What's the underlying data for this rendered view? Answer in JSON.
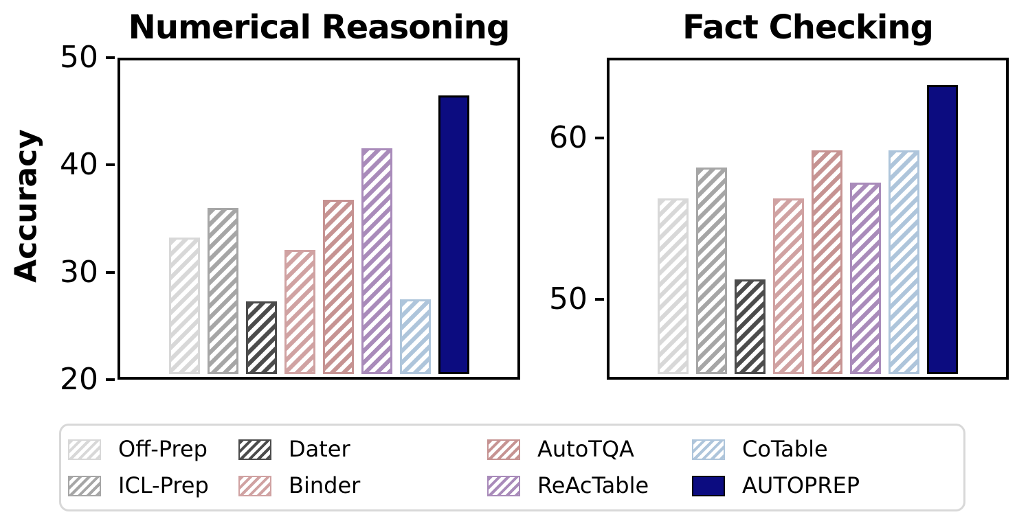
{
  "figure": {
    "ylabel": "Accuracy",
    "background": "#ffffff",
    "axis_color": "#000000"
  },
  "chart_data": [
    {
      "type": "bar",
      "title": "Numerical Reasoning",
      "ylabel": "Accuracy",
      "xlabel": "",
      "categories": [
        "Off-Prep",
        "ICL-Prep",
        "Dater",
        "Binder",
        "AutoTQA",
        "ReAcTable",
        "CoTable",
        "AUTOPREP"
      ],
      "values": [
        33.2,
        36.0,
        27.0,
        32.0,
        36.8,
        41.8,
        27.2,
        46.9
      ],
      "ylim": [
        20,
        50
      ],
      "yticks": [
        20,
        30,
        40,
        50
      ],
      "grid": false
    },
    {
      "type": "bar",
      "title": "Fact Checking",
      "ylabel": "",
      "xlabel": "",
      "categories": [
        "Off-Prep",
        "ICL-Prep",
        "Dater",
        "Binder",
        "AutoTQA",
        "ReAcTable",
        "CoTable",
        "AUTOPREP"
      ],
      "values": [
        56.3,
        58.3,
        51.1,
        56.3,
        59.4,
        57.3,
        59.4,
        63.6
      ],
      "ylim": [
        45,
        65
      ],
      "yticks": [
        50,
        60
      ],
      "grid": false
    }
  ],
  "legend": {
    "position": "bottom",
    "columns": 4,
    "fill_order": "column-major",
    "entries": [
      {
        "label": "Off-Prep",
        "color": "#d8d8d8",
        "hatch": true
      },
      {
        "label": "ICL-Prep",
        "color": "#a6a6a6",
        "hatch": true
      },
      {
        "label": "Dater",
        "color": "#4c4c4c",
        "hatch": true
      },
      {
        "label": "Binder",
        "color": "#d0a2a2",
        "hatch": true
      },
      {
        "label": "AutoTQA",
        "color": "#c69392",
        "hatch": true
      },
      {
        "label": "ReAcTable",
        "color": "#a98bba",
        "hatch": true
      },
      {
        "label": "CoTable",
        "color": "#aec5db",
        "hatch": true
      },
      {
        "label": "AUTOPREP",
        "color": "#0c0c80",
        "hatch": false,
        "edge": "#000000"
      }
    ]
  }
}
